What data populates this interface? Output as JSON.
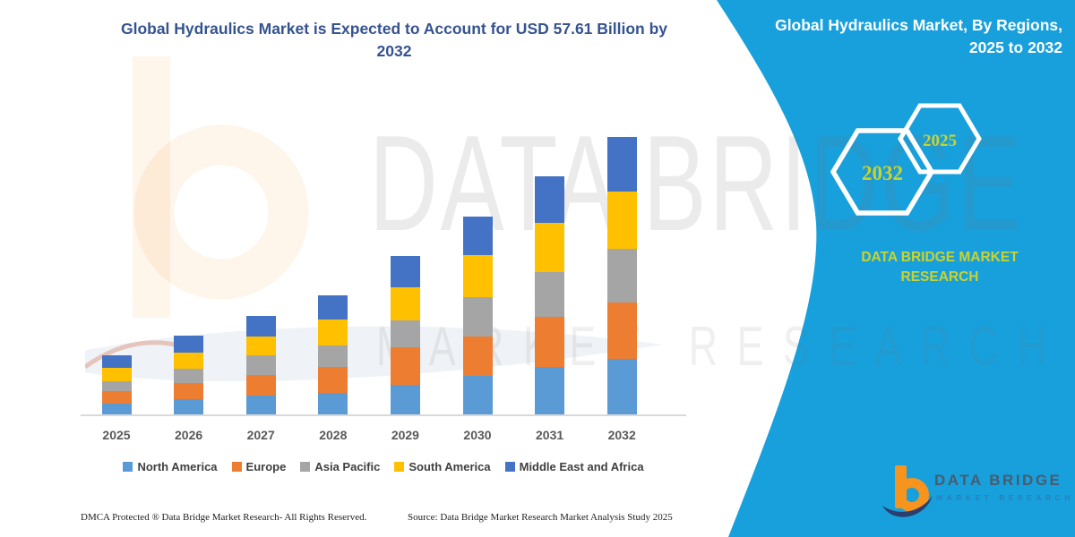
{
  "title": {
    "line1": "Global Hydraulics Market is Expected to Account for USD 57.61 Billion by",
    "line2": "2032"
  },
  "panel": {
    "title_line1": "Global Hydraulics Market, By Regions,",
    "title_line2": "2025 to 2032",
    "hexagons": [
      {
        "year": "2032"
      },
      {
        "year": "2025"
      }
    ],
    "caption_line1": "DATA BRIDGE MARKET",
    "caption_line2": "RESEARCH",
    "background_color": "#18a0dc",
    "year_text_color": "#c9d32f"
  },
  "watermarks": {
    "line1": "DATA BRIDGE",
    "line2": "MARKET RESEARCH"
  },
  "logo": {
    "name": "DATA BRIDGE",
    "subtitle": "MARKET RESEARCH",
    "orange": "#f7941e",
    "navy": "#2c3e70"
  },
  "footer": {
    "left": "DMCA Protected ® Data Bridge Market Research-  All Rights Reserved.",
    "right": "Source: Data Bridge Market Research  Market Analysis Study 2025"
  },
  "chart_data": {
    "type": "bar",
    "stacked": true,
    "title": "Global Hydraulics Market is Expected to Account for USD 57.61 Billion by 2032",
    "unit": "USD Billion",
    "categories": [
      "2025",
      "2026",
      "2027",
      "2028",
      "2029",
      "2030",
      "2031",
      "2032"
    ],
    "series": [
      {
        "name": "North America",
        "color": "#5B9BD5",
        "values": [
          2.29,
          3.1,
          3.9,
          4.52,
          6.19,
          8.05,
          9.9,
          11.45
        ]
      },
      {
        "name": "Europe",
        "color": "#ED7D31",
        "values": [
          2.6,
          3.4,
          4.33,
          5.39,
          7.75,
          8.05,
          10.35,
          11.78
        ]
      },
      {
        "name": "Asia Pacific",
        "color": "#A5A5A5",
        "values": [
          1.99,
          2.97,
          3.96,
          4.46,
          5.57,
          8.18,
          9.29,
          11.15
        ]
      },
      {
        "name": "South America",
        "color": "#FFC000",
        "values": [
          2.79,
          3.34,
          3.9,
          5.33,
          6.93,
          8.86,
          10.22,
          11.89
        ]
      },
      {
        "name": "Middle East and Africa",
        "color": "#4472C4",
        "values": [
          2.53,
          3.47,
          4.33,
          4.96,
          6.37,
          7.93,
          9.66,
          11.34
        ]
      }
    ],
    "totals_by_year": [
      12.2,
      16.28,
      20.42,
      24.66,
      32.81,
      41.07,
      49.42,
      57.61
    ],
    "highlight_total": {
      "year": "2032",
      "value": 57.61
    },
    "ylim": [
      0,
      60
    ],
    "y_axis_visible": false,
    "grid": false,
    "legend_position": "bottom"
  }
}
